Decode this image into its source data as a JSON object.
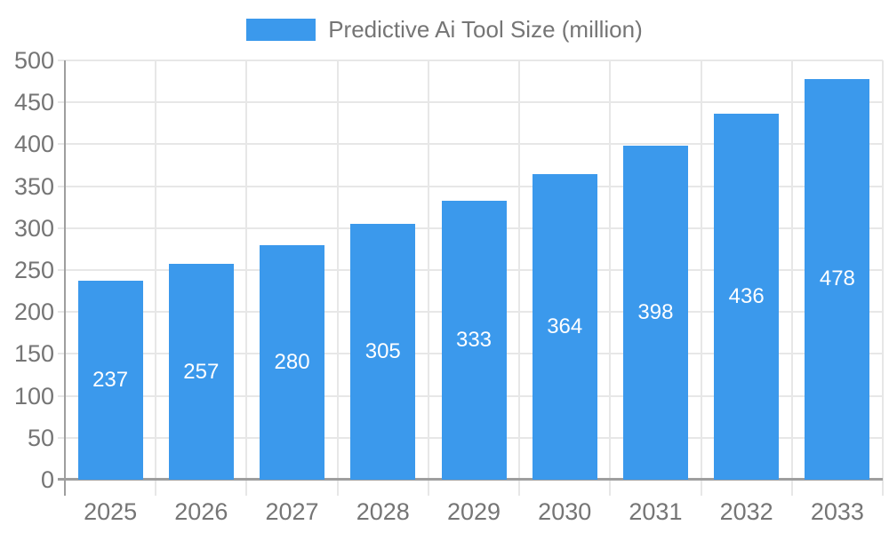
{
  "chart_data": {
    "type": "bar",
    "title": "Predictive Ai Tool Size (million)",
    "categories": [
      "2025",
      "2026",
      "2027",
      "2028",
      "2029",
      "2030",
      "2031",
      "2032",
      "2033"
    ],
    "values": [
      237,
      257,
      280,
      305,
      333,
      364,
      398,
      436,
      478
    ],
    "xlabel": "",
    "ylabel": "",
    "ylim": [
      0,
      500
    ],
    "ytick_step": 50,
    "yticks": [
      0,
      50,
      100,
      150,
      200,
      250,
      300,
      350,
      400,
      450,
      500
    ],
    "grid": true,
    "legend_position": "top-center",
    "bar_labels_inside": true,
    "colors": {
      "bar": "#3B99EC",
      "bar_label_text": "#FFFFFF",
      "axis_text": "#757575",
      "axis_line": "#9E9E9E",
      "gridline": "#E7E7E7",
      "background": "#FFFFFF"
    }
  }
}
